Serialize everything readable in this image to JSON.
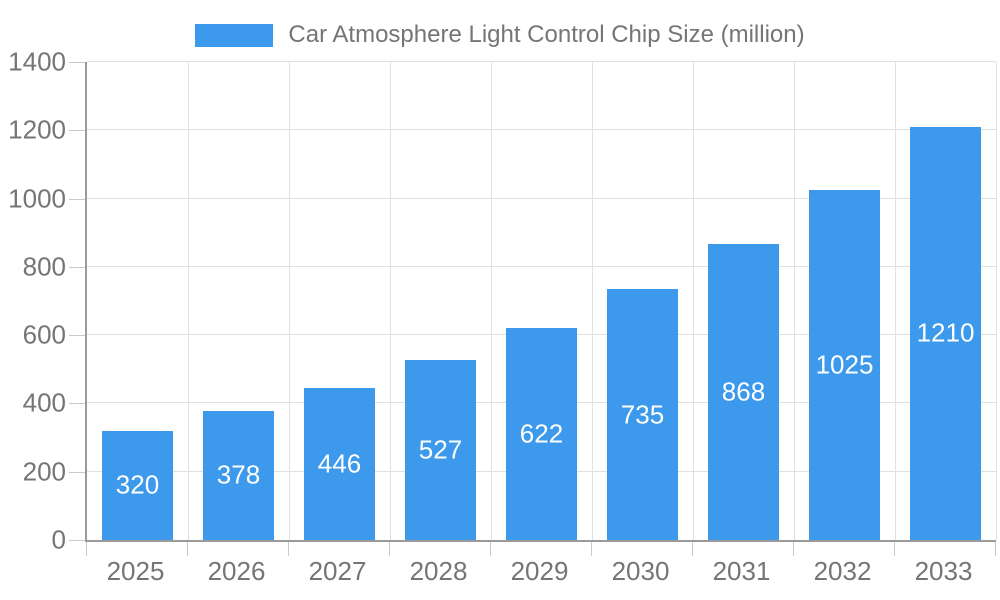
{
  "page": {
    "background": "#ffffff"
  },
  "legend": {
    "swatch_color": "#3c99ec",
    "label": "Car Atmosphere Light Control Chip Size (million)"
  },
  "chart_data": {
    "type": "bar",
    "title": "Car Atmosphere Light Control Chip Size (million)",
    "categories": [
      "2025",
      "2026",
      "2027",
      "2028",
      "2029",
      "2030",
      "2031",
      "2032",
      "2033"
    ],
    "values": [
      320,
      378,
      446,
      527,
      622,
      735,
      868,
      1025,
      1210
    ],
    "series": [
      {
        "name": "Car Atmosphere Light Control Chip Size (million)",
        "values": [
          320,
          378,
          446,
          527,
          622,
          735,
          868,
          1025,
          1210
        ]
      }
    ],
    "xlabel": "",
    "ylabel": "",
    "ylim": [
      0,
      1400
    ],
    "y_ticks": [
      0,
      200,
      400,
      600,
      800,
      1000,
      1200,
      1400
    ],
    "grid": true,
    "value_labels_shown": true,
    "legend_position": "top-center",
    "colors": {
      "bar": "#3c99ec",
      "grid": "#e0e0e0",
      "axis_line": "#9a9a9a",
      "tick": "#c9c9c9",
      "axis_text": "#757575",
      "value_label": "#ffffff"
    }
  }
}
